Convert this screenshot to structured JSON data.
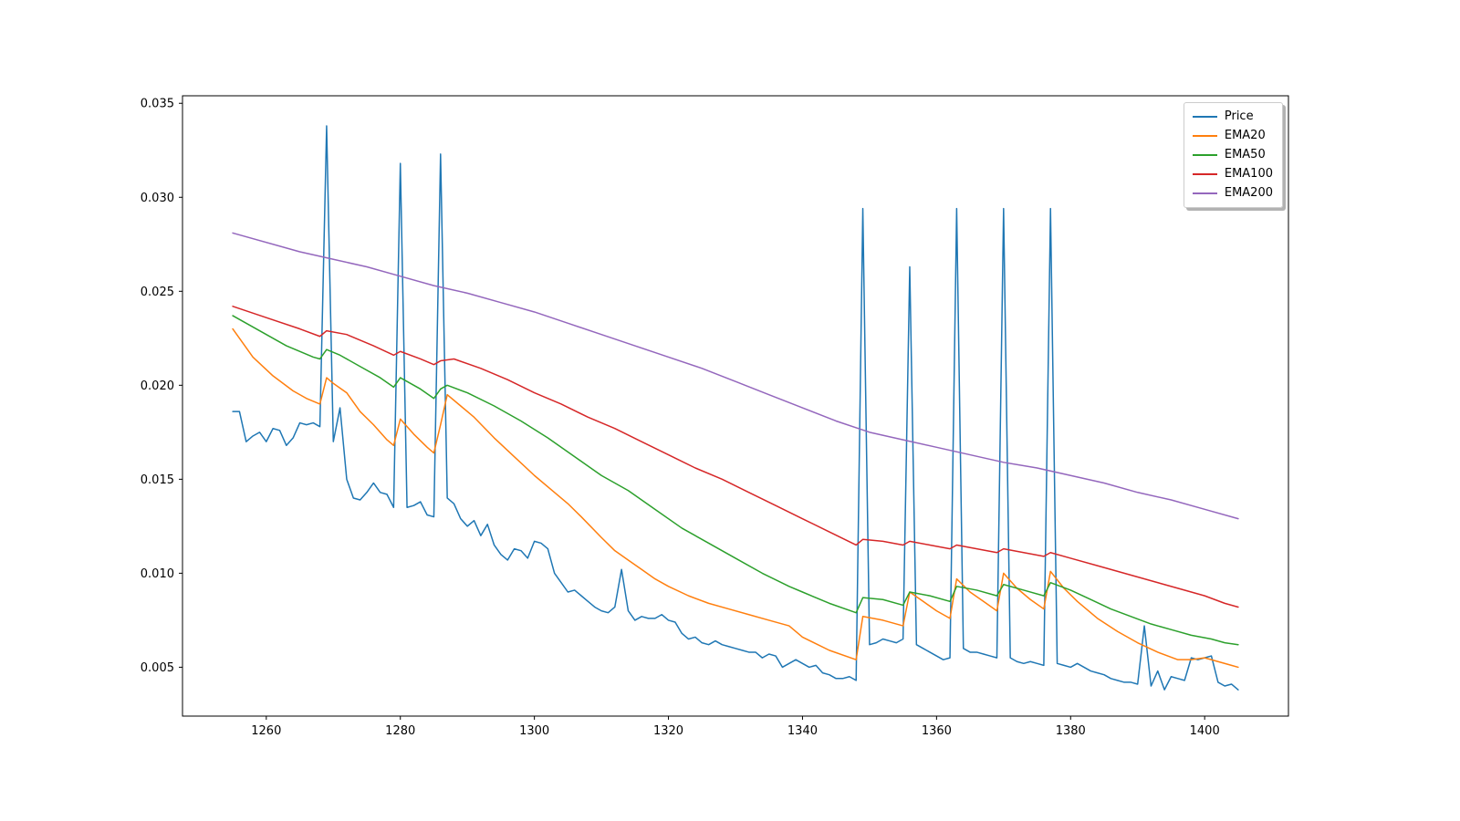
{
  "window": {
    "background": "#ffffff"
  },
  "chart_data": {
    "type": "line",
    "title": "",
    "xlabel": "",
    "ylabel": "",
    "grid": false,
    "legend_position": "upper right",
    "xlim": [
      1247.5,
      1412.5
    ],
    "ylim": [
      0.0024,
      0.0354
    ],
    "xticks": [
      1260,
      1280,
      1300,
      1320,
      1340,
      1360,
      1380,
      1400
    ],
    "yticks": [
      0.005,
      0.01,
      0.015,
      0.02,
      0.025,
      0.03,
      0.035
    ],
    "ytick_labels": [
      "0.005",
      "0.010",
      "0.015",
      "0.020",
      "0.025",
      "0.030",
      "0.035"
    ],
    "frame_color": "#000000",
    "series": [
      {
        "name": "Price",
        "color": "#1f77b4",
        "x_start": 1255,
        "x_step": 1,
        "values": [
          0.0186,
          0.0186,
          0.017,
          0.0173,
          0.0175,
          0.017,
          0.0177,
          0.0176,
          0.0168,
          0.0172,
          0.018,
          0.0179,
          0.018,
          0.0178,
          0.0338,
          0.017,
          0.0188,
          0.015,
          0.014,
          0.0139,
          0.0143,
          0.0148,
          0.0143,
          0.0142,
          0.0135,
          0.0318,
          0.0135,
          0.0136,
          0.0138,
          0.0131,
          0.013,
          0.0323,
          0.014,
          0.0137,
          0.0129,
          0.0125,
          0.0128,
          0.012,
          0.0126,
          0.0115,
          0.011,
          0.0107,
          0.0113,
          0.0112,
          0.0108,
          0.0117,
          0.0116,
          0.0113,
          0.01,
          0.0095,
          0.009,
          0.0091,
          0.0088,
          0.0085,
          0.0082,
          0.008,
          0.0079,
          0.0082,
          0.0102,
          0.008,
          0.0075,
          0.0077,
          0.0076,
          0.0076,
          0.0078,
          0.0075,
          0.0074,
          0.0068,
          0.0065,
          0.0066,
          0.0063,
          0.0062,
          0.0064,
          0.0062,
          0.0061,
          0.006,
          0.0059,
          0.0058,
          0.0058,
          0.0055,
          0.0057,
          0.0056,
          0.005,
          0.0052,
          0.0054,
          0.0052,
          0.005,
          0.0051,
          0.0047,
          0.0046,
          0.0044,
          0.0044,
          0.0045,
          0.0043,
          0.0294,
          0.0062,
          0.0063,
          0.0065,
          0.0064,
          0.0063,
          0.0065,
          0.0263,
          0.0062,
          0.006,
          0.0058,
          0.0056,
          0.0054,
          0.0055,
          0.0294,
          0.006,
          0.0058,
          0.0058,
          0.0057,
          0.0056,
          0.0055,
          0.0294,
          0.0055,
          0.0053,
          0.0052,
          0.0053,
          0.0052,
          0.0051,
          0.0294,
          0.0052,
          0.0051,
          0.005,
          0.0052,
          0.005,
          0.0048,
          0.0047,
          0.0046,
          0.0044,
          0.0043,
          0.0042,
          0.0042,
          0.0041,
          0.0072,
          0.004,
          0.0048,
          0.0038,
          0.0045,
          0.0044,
          0.0043,
          0.0055,
          0.0054,
          0.0055,
          0.0056,
          0.0042,
          0.004,
          0.0041,
          0.0038
        ]
      },
      {
        "name": "EMA20",
        "color": "#ff7f0e",
        "x": [
          1255,
          1258,
          1261,
          1264,
          1266,
          1268,
          1269,
          1270,
          1272,
          1274,
          1276,
          1278,
          1279,
          1280,
          1282,
          1284,
          1285,
          1286,
          1287,
          1289,
          1291,
          1294,
          1297,
          1300,
          1303,
          1305,
          1307,
          1310,
          1312,
          1314,
          1316,
          1318,
          1320,
          1323,
          1326,
          1329,
          1332,
          1335,
          1338,
          1340,
          1344,
          1348,
          1349,
          1352,
          1355,
          1356,
          1358,
          1360,
          1362,
          1363,
          1365,
          1367,
          1369,
          1370,
          1372,
          1374,
          1376,
          1377,
          1379,
          1381,
          1384,
          1387,
          1390,
          1393,
          1396,
          1398,
          1400,
          1402,
          1404,
          1405
        ],
        "values": [
          0.023,
          0.0215,
          0.0205,
          0.0197,
          0.0193,
          0.019,
          0.0204,
          0.0201,
          0.0196,
          0.0186,
          0.0179,
          0.0171,
          0.0168,
          0.0182,
          0.0174,
          0.0167,
          0.0164,
          0.0179,
          0.0195,
          0.0189,
          0.0183,
          0.0172,
          0.0162,
          0.0152,
          0.0143,
          0.0137,
          0.013,
          0.0119,
          0.0112,
          0.0107,
          0.0102,
          0.0097,
          0.0093,
          0.0088,
          0.0084,
          0.0081,
          0.0078,
          0.0075,
          0.0072,
          0.0066,
          0.0059,
          0.0054,
          0.0077,
          0.0075,
          0.0072,
          0.009,
          0.0085,
          0.008,
          0.0076,
          0.0097,
          0.009,
          0.0085,
          0.008,
          0.01,
          0.0092,
          0.0086,
          0.0081,
          0.0101,
          0.0092,
          0.0085,
          0.0076,
          0.0069,
          0.0063,
          0.0058,
          0.0054,
          0.0054,
          0.0055,
          0.0053,
          0.0051,
          0.005
        ]
      },
      {
        "name": "EMA50",
        "color": "#2ca02c",
        "x": [
          1255,
          1259,
          1263,
          1267,
          1268,
          1269,
          1271,
          1274,
          1277,
          1279,
          1280,
          1283,
          1285,
          1286,
          1287,
          1290,
          1294,
          1298,
          1302,
          1306,
          1310,
          1314,
          1318,
          1322,
          1326,
          1330,
          1334,
          1338,
          1340,
          1344,
          1348,
          1349,
          1352,
          1355,
          1356,
          1359,
          1362,
          1363,
          1366,
          1369,
          1370,
          1373,
          1376,
          1377,
          1380,
          1383,
          1386,
          1389,
          1392,
          1395,
          1398,
          1401,
          1403,
          1405
        ],
        "values": [
          0.0237,
          0.0229,
          0.0221,
          0.0215,
          0.0214,
          0.0219,
          0.0216,
          0.021,
          0.0204,
          0.0199,
          0.0204,
          0.0198,
          0.0193,
          0.0198,
          0.02,
          0.0196,
          0.0189,
          0.0181,
          0.0172,
          0.0162,
          0.0152,
          0.0144,
          0.0134,
          0.0124,
          0.0116,
          0.0108,
          0.01,
          0.0093,
          0.009,
          0.0084,
          0.0079,
          0.0087,
          0.0086,
          0.0083,
          0.009,
          0.0088,
          0.0085,
          0.0093,
          0.0091,
          0.0088,
          0.0094,
          0.0091,
          0.0088,
          0.0095,
          0.0091,
          0.0086,
          0.0081,
          0.0077,
          0.0073,
          0.007,
          0.0067,
          0.0065,
          0.0063,
          0.0062
        ]
      },
      {
        "name": "EMA100",
        "color": "#d62728",
        "x": [
          1255,
          1260,
          1265,
          1268,
          1269,
          1272,
          1276,
          1279,
          1280,
          1283,
          1285,
          1286,
          1288,
          1292,
          1296,
          1300,
          1304,
          1308,
          1312,
          1316,
          1320,
          1324,
          1328,
          1332,
          1336,
          1340,
          1344,
          1348,
          1349,
          1352,
          1355,
          1356,
          1359,
          1362,
          1363,
          1366,
          1369,
          1370,
          1373,
          1376,
          1377,
          1380,
          1384,
          1388,
          1392,
          1396,
          1400,
          1403,
          1405
        ],
        "values": [
          0.0242,
          0.0236,
          0.023,
          0.0226,
          0.0229,
          0.0227,
          0.0221,
          0.0216,
          0.0218,
          0.0214,
          0.0211,
          0.0213,
          0.0214,
          0.0209,
          0.0203,
          0.0196,
          0.019,
          0.0183,
          0.0177,
          0.017,
          0.0163,
          0.0156,
          0.015,
          0.0143,
          0.0136,
          0.0129,
          0.0122,
          0.0115,
          0.0118,
          0.0117,
          0.0115,
          0.0117,
          0.0115,
          0.0113,
          0.0115,
          0.0113,
          0.0111,
          0.0113,
          0.0111,
          0.0109,
          0.0111,
          0.0108,
          0.0104,
          0.01,
          0.0096,
          0.0092,
          0.0088,
          0.0084,
          0.0082
        ]
      },
      {
        "name": "EMA200",
        "color": "#9467bd",
        "x": [
          1255,
          1265,
          1270,
          1275,
          1280,
          1285,
          1290,
          1295,
          1300,
          1305,
          1310,
          1315,
          1320,
          1325,
          1330,
          1335,
          1340,
          1345,
          1350,
          1355,
          1360,
          1365,
          1370,
          1375,
          1380,
          1385,
          1390,
          1395,
          1400,
          1405
        ],
        "values": [
          0.0281,
          0.0271,
          0.0267,
          0.0263,
          0.0258,
          0.0253,
          0.0249,
          0.0244,
          0.0239,
          0.0233,
          0.0227,
          0.0221,
          0.0215,
          0.0209,
          0.0202,
          0.0195,
          0.0188,
          0.0181,
          0.0175,
          0.0171,
          0.0167,
          0.0163,
          0.0159,
          0.0156,
          0.0152,
          0.0148,
          0.0143,
          0.0139,
          0.0134,
          0.0129
        ]
      }
    ]
  }
}
